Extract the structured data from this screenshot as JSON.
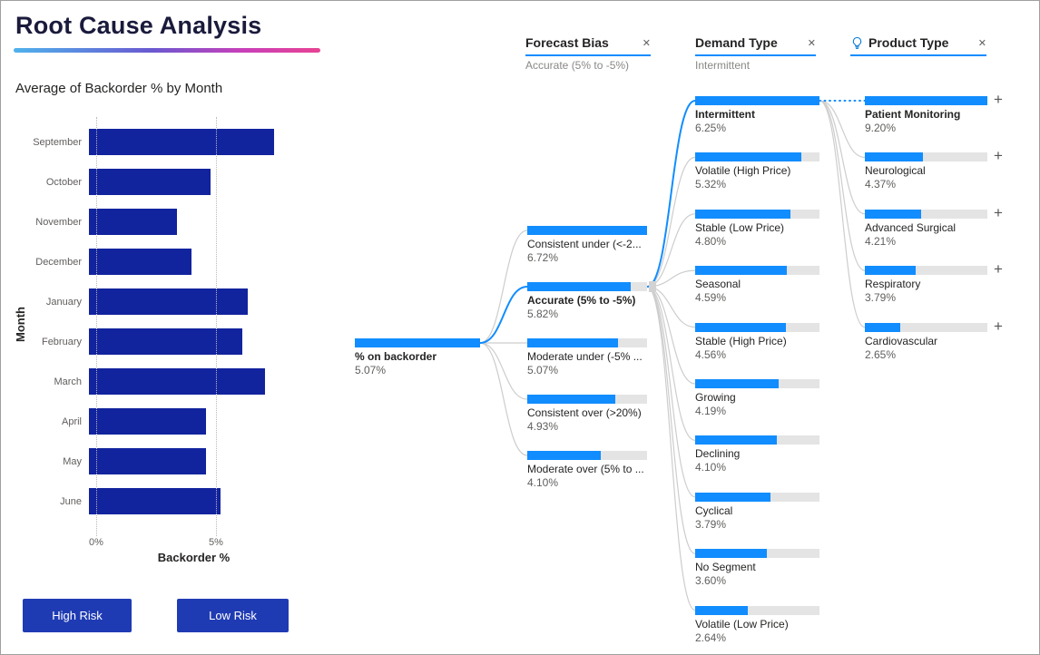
{
  "page": {
    "title": "Root Cause Analysis"
  },
  "colors": {
    "accent_blue": "#118DFF",
    "bar_navy": "#12239E",
    "button_blue": "#1F3BB3",
    "track_gray": "#E4E4E4",
    "connector_gray": "#CDCDCD"
  },
  "icons": {
    "close": "✕",
    "plus": "+",
    "bulb": "lightbulb-icon"
  },
  "chart_data": {
    "type": "bar",
    "orientation": "horizontal",
    "title": "Average of Backorder % by Month",
    "categories": [
      "September",
      "October",
      "November",
      "December",
      "January",
      "February",
      "March",
      "April",
      "May",
      "June"
    ],
    "values": [
      7.6,
      5.0,
      3.6,
      4.2,
      6.5,
      6.3,
      7.2,
      4.8,
      4.8,
      5.4
    ],
    "xlabel": "Backorder %",
    "ylabel": "Month",
    "x_ticks": [
      "0%",
      "5%"
    ],
    "xlim": [
      0,
      8
    ],
    "grid": "dotted vertical at ticks",
    "bar_color": "#12239E"
  },
  "buttons": [
    {
      "label": "High Risk"
    },
    {
      "label": "Low Risk"
    }
  ],
  "tree": {
    "root": {
      "label": "% on backorder",
      "value": "5.07%",
      "pct": 5.07,
      "selected": true
    },
    "levels": [
      {
        "header": "Forecast Bias",
        "subtitle": "Accurate (5% to -5%)",
        "nodes": [
          {
            "label": "Consistent under (<-2...",
            "value": "6.72%",
            "pct": 6.72,
            "selected": false
          },
          {
            "label": "Accurate (5% to -5%)",
            "value": "5.82%",
            "pct": 5.82,
            "selected": true
          },
          {
            "label": "Moderate under (-5% ...",
            "value": "5.07%",
            "pct": 5.07,
            "selected": false
          },
          {
            "label": "Consistent over (>20%)",
            "value": "4.93%",
            "pct": 4.93,
            "selected": false
          },
          {
            "label": "Moderate over (5% to ...",
            "value": "4.10%",
            "pct": 4.1,
            "selected": false
          }
        ]
      },
      {
        "header": "Demand Type",
        "subtitle": "Intermittent",
        "nodes": [
          {
            "label": "Intermittent",
            "value": "6.25%",
            "pct": 6.25,
            "selected": true
          },
          {
            "label": "Volatile (High Price)",
            "value": "5.32%",
            "pct": 5.32,
            "selected": false
          },
          {
            "label": "Stable (Low Price)",
            "value": "4.80%",
            "pct": 4.8,
            "selected": false
          },
          {
            "label": "Seasonal",
            "value": "4.59%",
            "pct": 4.59,
            "selected": false
          },
          {
            "label": "Stable (High Price)",
            "value": "4.56%",
            "pct": 4.56,
            "selected": false
          },
          {
            "label": "Growing",
            "value": "4.19%",
            "pct": 4.19,
            "selected": false
          },
          {
            "label": "Declining",
            "value": "4.10%",
            "pct": 4.1,
            "selected": false
          },
          {
            "label": "Cyclical",
            "value": "3.79%",
            "pct": 3.79,
            "selected": false
          },
          {
            "label": "No Segment",
            "value": "3.60%",
            "pct": 3.6,
            "selected": false
          },
          {
            "label": "Volatile (Low Price)",
            "value": "2.64%",
            "pct": 2.64,
            "selected": false
          }
        ]
      },
      {
        "header": "Product Type",
        "subtitle": "",
        "ai_split": true,
        "nodes": [
          {
            "label": "Patient Monitoring",
            "value": "9.20%",
            "pct": 9.2,
            "selected": true
          },
          {
            "label": "Neurological",
            "value": "4.37%",
            "pct": 4.37,
            "selected": false
          },
          {
            "label": "Advanced Surgical",
            "value": "4.21%",
            "pct": 4.21,
            "selected": false
          },
          {
            "label": "Respiratory",
            "value": "3.79%",
            "pct": 3.79,
            "selected": false
          },
          {
            "label": "Cardiovascular",
            "value": "2.65%",
            "pct": 2.65,
            "selected": false
          }
        ]
      }
    ]
  }
}
